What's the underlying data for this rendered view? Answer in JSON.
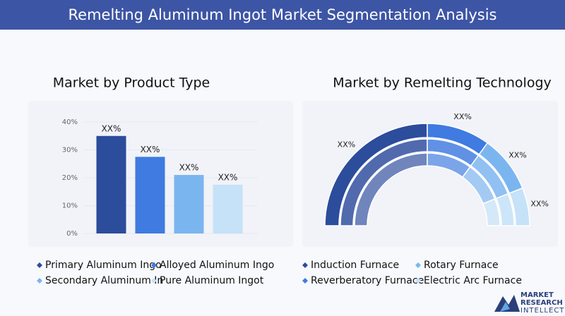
{
  "title": "Remelting Aluminum Ingot Market Segmentation Analysis",
  "chart_data": [
    {
      "type": "bar",
      "title": "Market by Product Type",
      "categories": [
        "Primary Aluminum Ingo",
        "Alloyed Aluminum Ingo",
        "Secondary Aluminum In",
        "Pure Aluminum Ingot"
      ],
      "values": [
        35,
        27.5,
        21,
        17.5
      ],
      "value_labels": [
        "XX%",
        "XX%",
        "XX%",
        "XX%"
      ],
      "colors": [
        "#2c4c9c",
        "#3f7be0",
        "#7bb5f0",
        "#c5e2f8"
      ],
      "ylim": [
        0,
        40
      ],
      "yticks": [
        {
          "value": 0,
          "label": "0%"
        },
        {
          "value": 10,
          "label": "10%"
        },
        {
          "value": 20,
          "label": "20%"
        },
        {
          "value": 30,
          "label": "30%"
        },
        {
          "value": 40,
          "label": "40%"
        }
      ],
      "grid": true
    },
    {
      "type": "donut",
      "title": "Market by Remelting Technology",
      "categories": [
        "Induction Furnace",
        "Reverberatory Furnace",
        "Rotary Furnace",
        "Electric Arc Furnace"
      ],
      "values": [
        50,
        20,
        18,
        12
      ],
      "value_labels": [
        "XX%",
        "XX%",
        "XX%",
        "XX%"
      ],
      "colors": [
        "#2c4c9c",
        "#3f7be0",
        "#7bb5f0",
        "#c5e2f8"
      ]
    }
  ],
  "logo": {
    "lines": [
      "MARKET",
      "RESEARCH",
      "INTELLECT"
    ]
  }
}
